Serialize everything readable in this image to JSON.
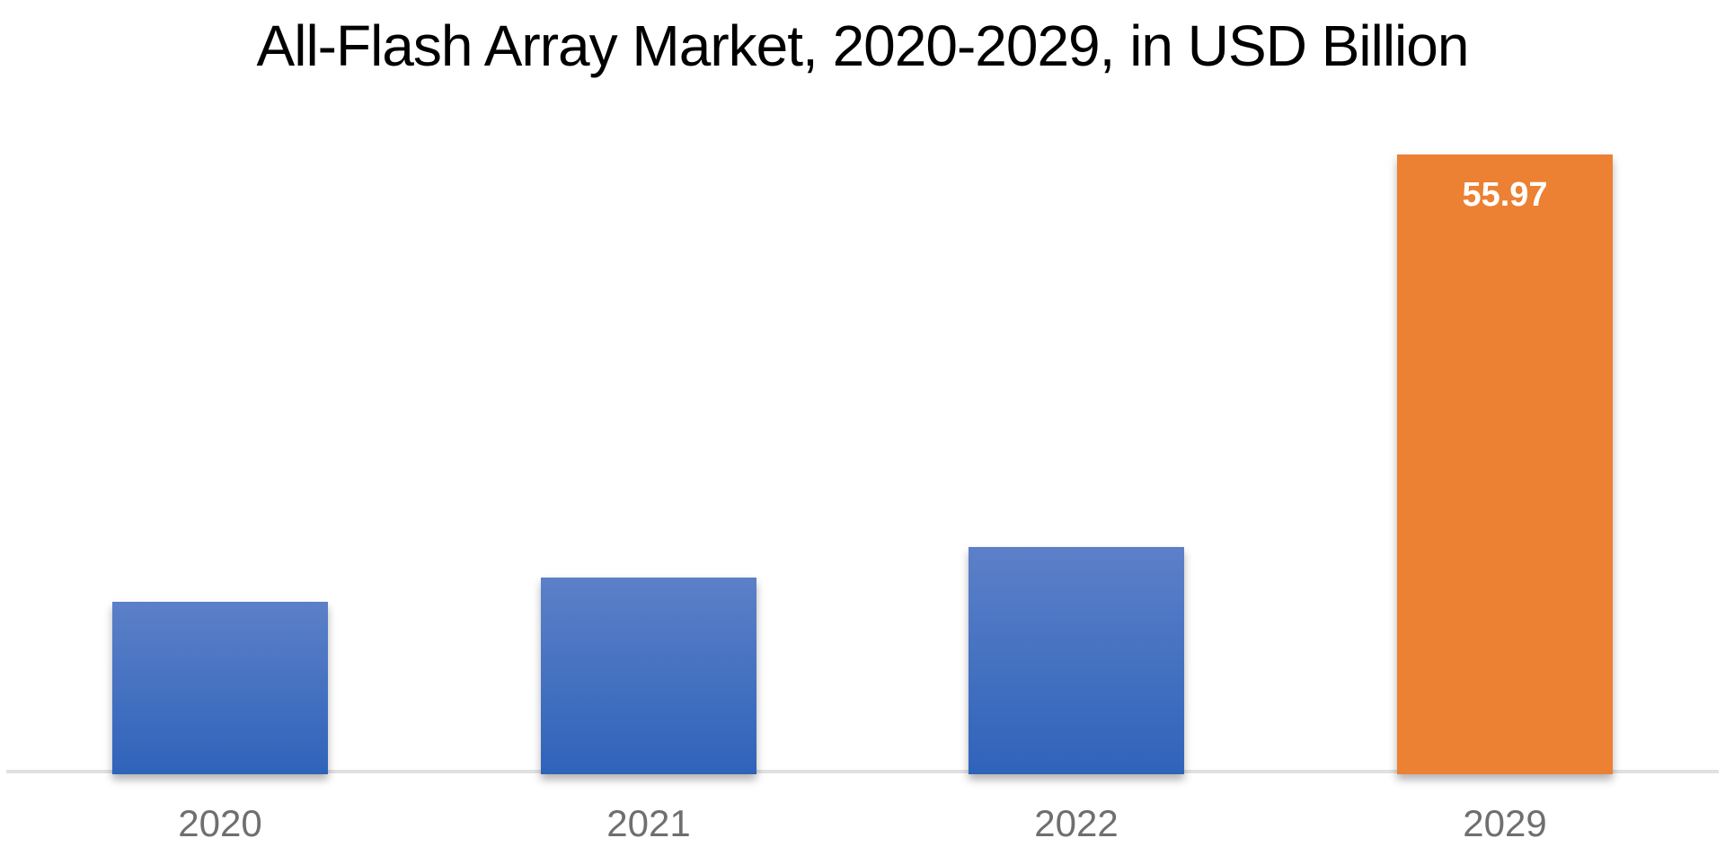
{
  "chart_data": {
    "type": "bar",
    "title": "All-Flash Array Market, 2020-2029, in USD Billion",
    "categories": [
      "2020",
      "2021",
      "2022",
      "2029"
    ],
    "values": [
      15.6,
      17.8,
      20.5,
      55.97
    ],
    "data_labels": [
      "",
      "",
      "",
      "55.97"
    ],
    "xlabel": "",
    "ylabel": "",
    "ylim": [
      0,
      55.97
    ],
    "grid": false,
    "legend": "none",
    "bar_roles": [
      "primary",
      "primary",
      "primary",
      "accent"
    ]
  },
  "colors": {
    "title_text": "#000000",
    "tick_label_text": "#6F6F6F",
    "axis_line": "#E1E1E1",
    "primary_bar_gradient_top": "#5C80C8",
    "primary_bar_gradient_bottom": "#2F63BA",
    "accent_bar": "#EC8033",
    "data_label_text": "#FFFFFF",
    "background": "#FFFFFF"
  }
}
